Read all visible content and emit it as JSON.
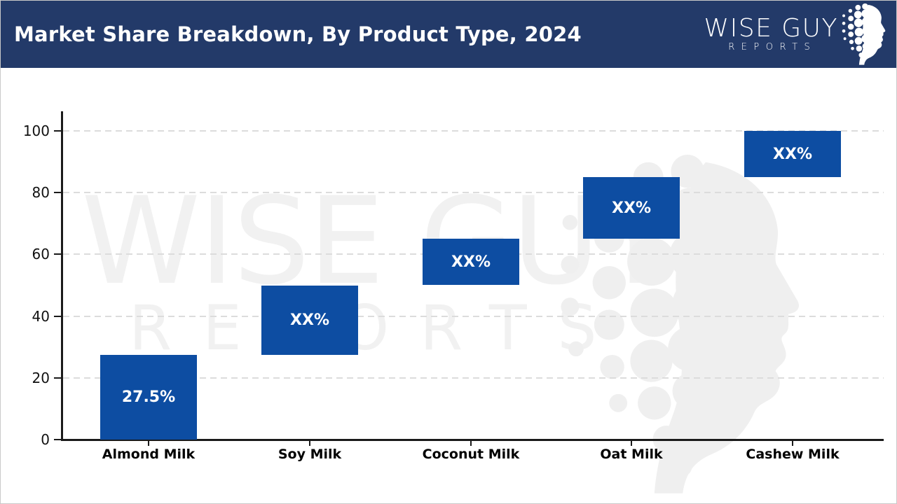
{
  "header": {
    "title": "Market Share Breakdown, By Product Type, 2024",
    "logo": {
      "wordmark": "WISE GUY",
      "subtext": "REPORTS"
    }
  },
  "watermark": {
    "line1": "WISE GUY",
    "line2": "REPORTS"
  },
  "chart_data": {
    "type": "bar",
    "subtype": "floating-waterfall-segments",
    "title": "Market Share Breakdown, By Product Type, 2024",
    "categories": [
      "Almond Milk",
      "Soy Milk",
      "Coconut Milk",
      "Oat Milk",
      "Cashew Milk"
    ],
    "segments": [
      {
        "category": "Almond Milk",
        "start": 0,
        "end": 27.5,
        "label": "27.5%"
      },
      {
        "category": "Soy Milk",
        "start": 27.5,
        "end": 50,
        "label": "XX%"
      },
      {
        "category": "Coconut Milk",
        "start": 50,
        "end": 65,
        "label": "XX%"
      },
      {
        "category": "Oat Milk",
        "start": 65,
        "end": 85,
        "label": "XX%"
      },
      {
        "category": "Cashew Milk",
        "start": 85,
        "end": 100,
        "label": "XX%"
      }
    ],
    "yticks": [
      0,
      20,
      40,
      60,
      80,
      100
    ],
    "ylim": [
      0,
      107
    ],
    "xlabel": "",
    "ylabel": "",
    "legend": "none",
    "grid": "horizontal-dashed"
  },
  "colors": {
    "header_bg": "#233A69",
    "bar_fill": "#0D4DA2",
    "bar_label": "#FFFFFF",
    "axis": "#1A1A1A",
    "grid": "#DCDCDC",
    "tick_label": "#111111",
    "watermark": "#F1F1F1",
    "canvas_border": "#C9C9C9"
  }
}
